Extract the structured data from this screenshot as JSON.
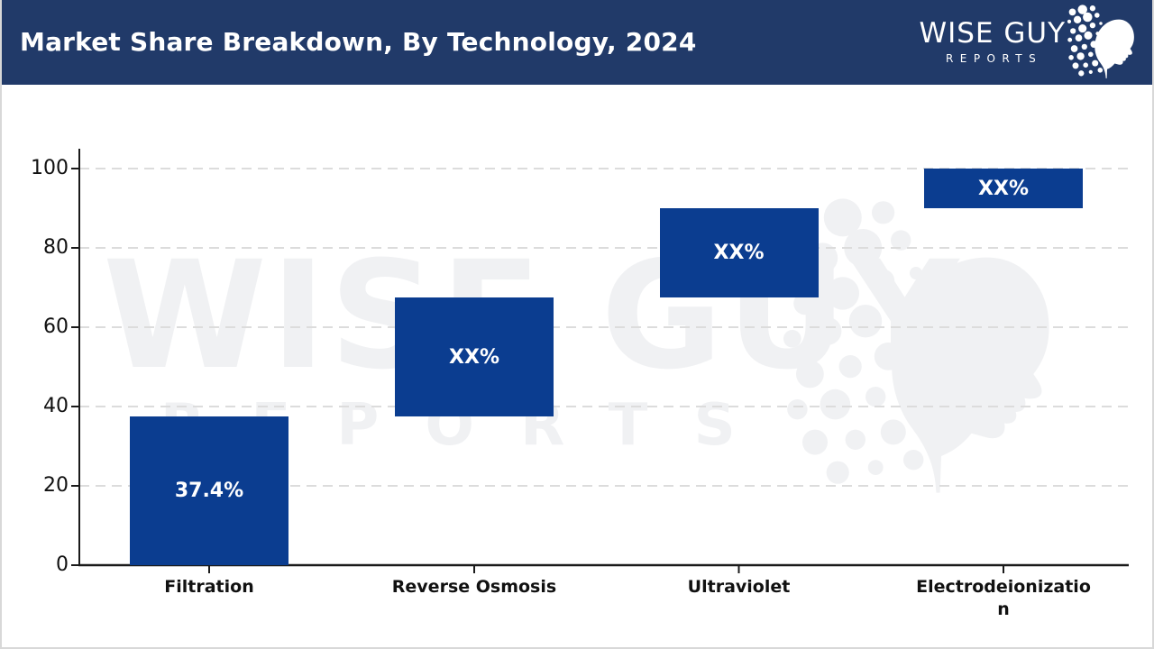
{
  "header": {
    "title": "Market Share Breakdown, By Technology, 2024",
    "bg_color": "#213a69",
    "logo": {
      "wordmark": "WISE GUY",
      "subtext": "REPORTS"
    }
  },
  "watermark": {
    "wordmark": "WISE GUY",
    "subtext": "REPORTS"
  },
  "chart_data": {
    "type": "waterfall",
    "title": "Market Share Breakdown, By Technology, 2024",
    "categories": [
      "Filtration",
      "Reverse Osmosis",
      "Ultraviolet",
      "Electrodeionization"
    ],
    "segments": [
      {
        "category": "Filtration",
        "start": 0,
        "end": 37.4,
        "label": "37.4%"
      },
      {
        "category": "Reverse Osmosis",
        "start": 37.4,
        "end": 67.5,
        "label": "XX%"
      },
      {
        "category": "Ultraviolet",
        "start": 67.5,
        "end": 90,
        "label": "XX%"
      },
      {
        "category": "Electrodeionization",
        "start": 90,
        "end": 100,
        "label": "XX%"
      }
    ],
    "ylim": [
      0,
      100
    ],
    "yticks": [
      0,
      20,
      40,
      60,
      80,
      100
    ],
    "xlabel": "",
    "ylabel": "",
    "grid": "horizontal-dashed",
    "legend": "none",
    "bar_color": "#0b3d90",
    "bar_label_color": "#ffffff",
    "grid_color": "#dcdcdc",
    "axis_color": "#1a1a1a"
  }
}
